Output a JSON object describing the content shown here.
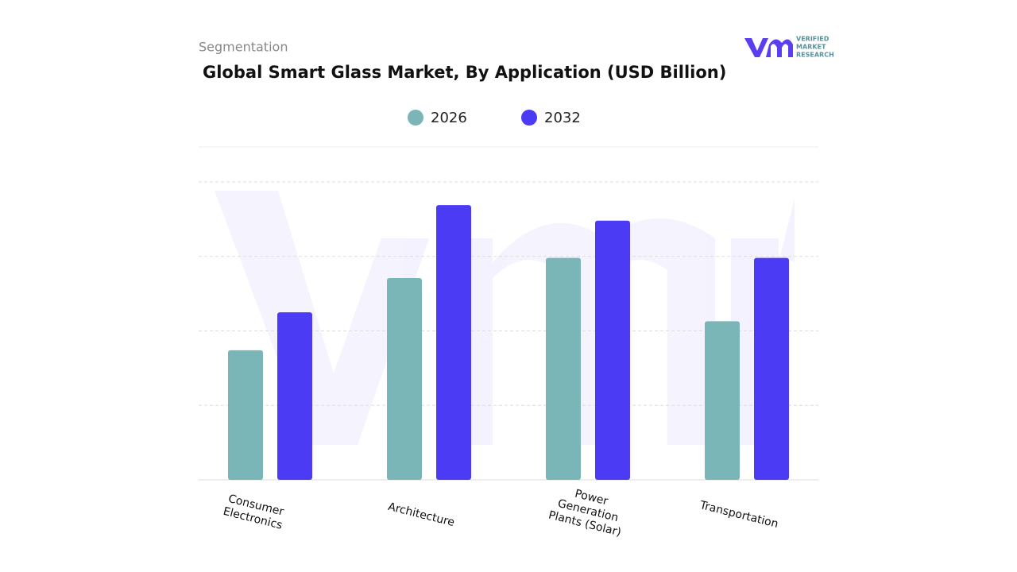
{
  "header": {
    "section": "Segmentation",
    "logo": {
      "line1": "VERIFIED",
      "line2": "MARKET",
      "line3": "RESEARCH"
    }
  },
  "chart_data": {
    "type": "bar",
    "title": "Global Smart Glass Market, By Application (USD Billion)",
    "categories": [
      "Consumer Electronics",
      "Architecture",
      "Power Generation Plants (Solar)",
      "Transportation"
    ],
    "series": [
      {
        "name": "2026",
        "color": "#7ab5b8",
        "values": [
          1.74,
          2.71,
          2.98,
          2.13
        ]
      },
      {
        "name": "2032",
        "color": "#4b3bf5",
        "values": [
          2.25,
          3.69,
          3.48,
          2.98
        ]
      }
    ],
    "ylim": [
      0,
      4.47
    ],
    "gridlines": [
      1,
      2,
      3,
      4
    ],
    "grid": true
  }
}
